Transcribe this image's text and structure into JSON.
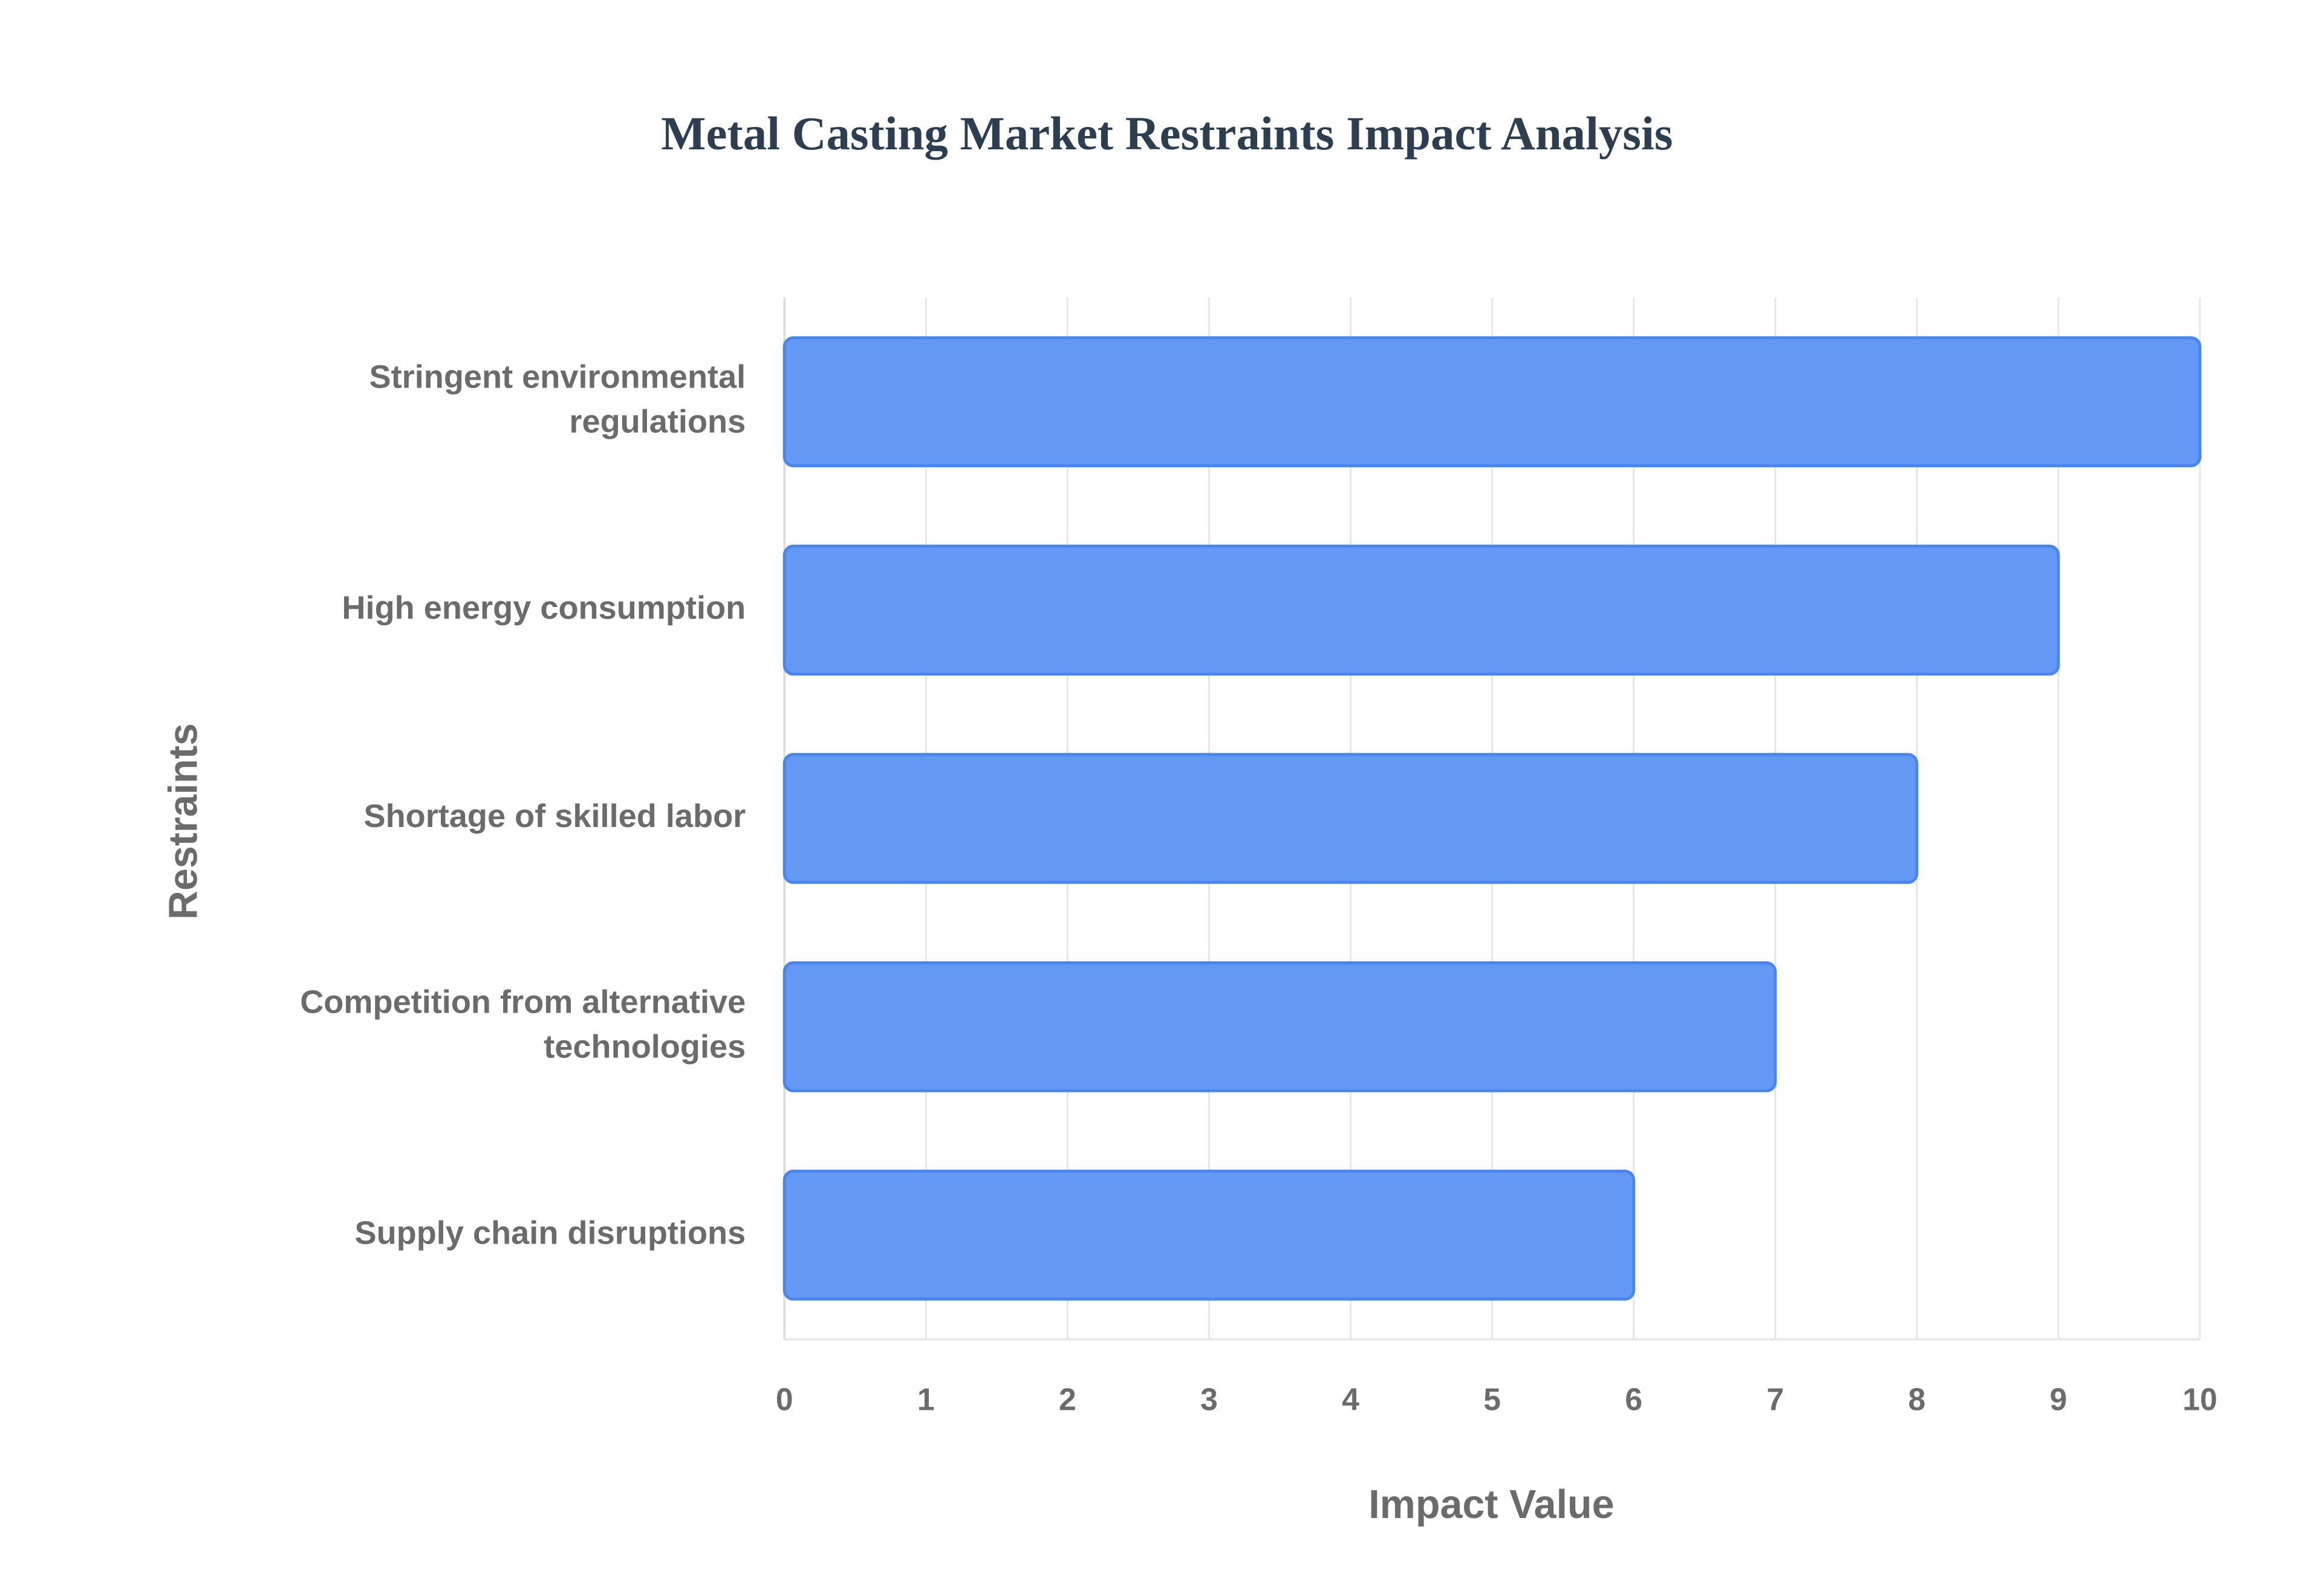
{
  "chart_data": {
    "type": "bar",
    "orientation": "horizontal",
    "title": "Metal Casting Market Restraints Impact Analysis",
    "x_label": "Impact Value",
    "y_label": "Restraints",
    "categories": [
      "Stringent environmental regulations",
      "High energy consumption",
      "Shortage of skilled labor",
      "Competition from alternative technologies",
      "Supply chain disruptions"
    ],
    "values": [
      10,
      9,
      8,
      7,
      6
    ],
    "color": "#6399f5",
    "xlim": [
      0,
      10
    ],
    "xticks": [
      0,
      1,
      2,
      3,
      4,
      5,
      6,
      7,
      8,
      9,
      10
    ],
    "grid": true
  }
}
